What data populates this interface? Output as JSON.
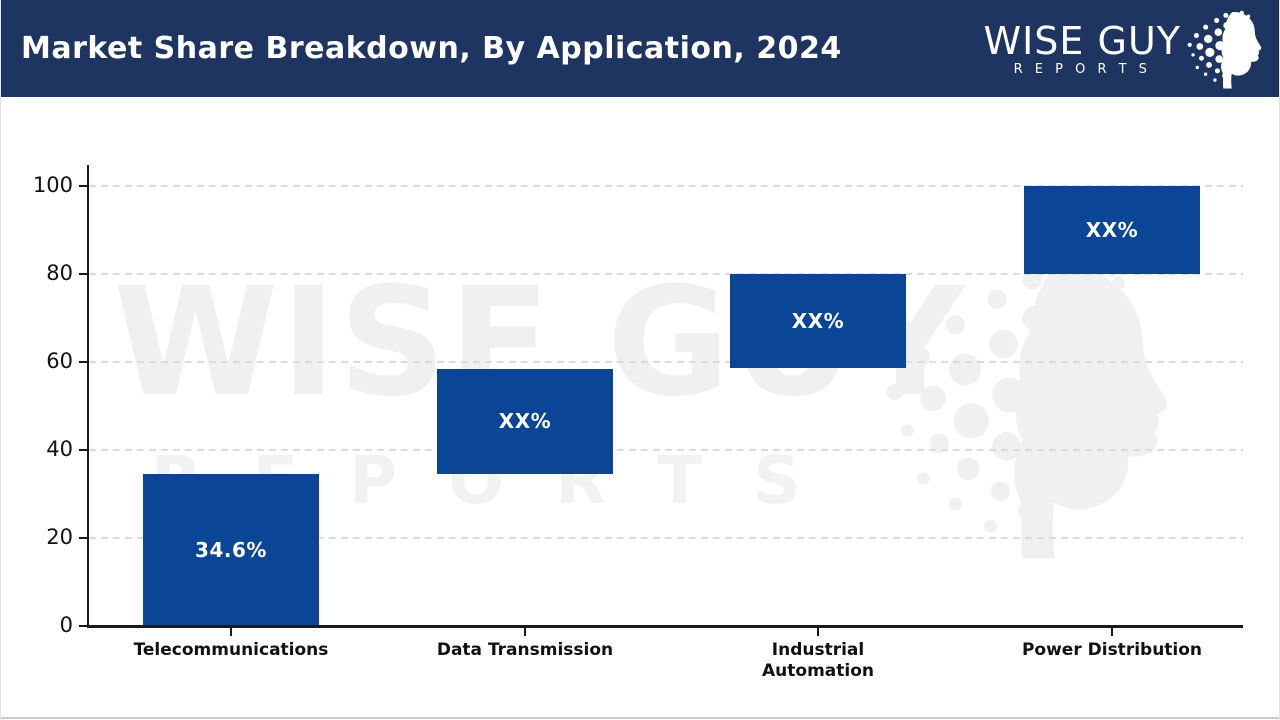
{
  "header": {
    "title": "Market Share Breakdown, By Application, 2024",
    "logo": {
      "line1": "WISE GUY",
      "line2": "R E P O R T S"
    }
  },
  "watermark": {
    "line1": "WISE GUY",
    "line2": "R E P O R T S"
  },
  "colors": {
    "header_bg": "#1e3461",
    "bar": "#0a4596",
    "bar_label": "#ffffff",
    "grid": "#dcdcdc",
    "axis": "#1a1a1a",
    "watermark": "#f0f0f2"
  },
  "chart_data": {
    "type": "bar",
    "subtype": "waterfall (floating segment bars)",
    "title": "Market Share Breakdown, By Application, 2024",
    "categories": [
      "Telecommunications",
      "Data Transmission",
      "Industrial\nAutomation",
      "Power Distribution"
    ],
    "segments": [
      {
        "category": "Telecommunications",
        "start": 0,
        "end": 34.6,
        "label": "34.6%"
      },
      {
        "category": "Data Transmission",
        "start": 34.6,
        "end": 58.5,
        "label": "XX%"
      },
      {
        "category": "Industrial Automation",
        "start": 58.7,
        "end": 79.9,
        "label": "XX%"
      },
      {
        "category": "Power Distribution",
        "start": 80,
        "end": 100,
        "label": "XX%"
      }
    ],
    "xlabel": "",
    "ylabel": "",
    "ylim": [
      0,
      105
    ],
    "yticks": [
      0,
      20,
      40,
      60,
      80,
      100
    ],
    "grid": "horizontal dashed, light gray",
    "legend": "none"
  }
}
